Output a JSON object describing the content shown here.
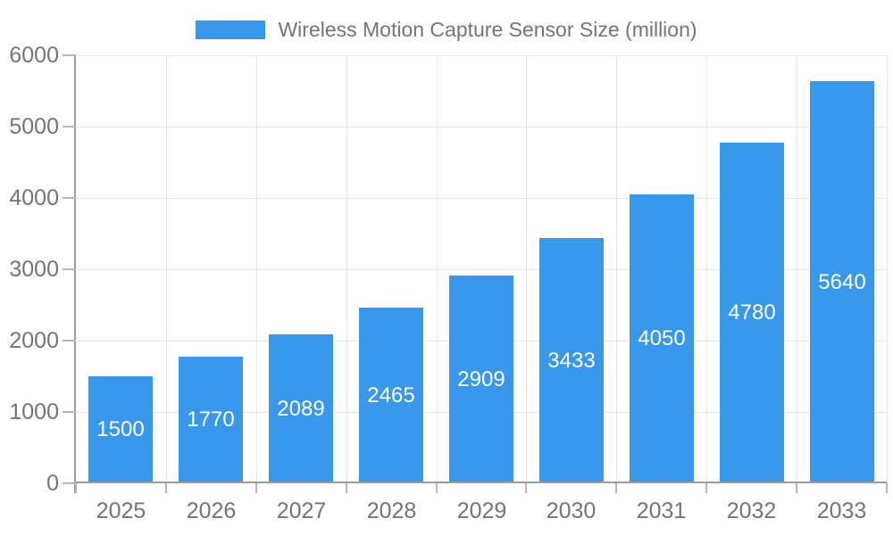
{
  "colors": {
    "bar": "#3898EC",
    "grid": "#e6e6e6",
    "axis": "#9b9b9b",
    "tick": "#b7b7b7",
    "axis_label": "#757575",
    "value_label": "#ffffff",
    "background": "#ffffff"
  },
  "legend": {
    "label": "Wireless Motion Capture Sensor Size (million)"
  },
  "chart_data": {
    "type": "bar",
    "title": "Wireless Motion Capture Sensor Size (million)",
    "series_name": "Wireless Motion Capture Sensor Size (million)",
    "categories": [
      "2025",
      "2026",
      "2027",
      "2028",
      "2029",
      "2030",
      "2031",
      "2032",
      "2033"
    ],
    "values": [
      1500,
      1770,
      2089,
      2465,
      2909,
      3433,
      4050,
      4780,
      5640
    ],
    "xlabel": "",
    "ylabel": "",
    "ylim": [
      0,
      6000
    ],
    "yticks": [
      0,
      1000,
      2000,
      3000,
      4000,
      5000,
      6000
    ],
    "grid": true,
    "legend_position": "top",
    "bar_label_position": "inside-center"
  }
}
